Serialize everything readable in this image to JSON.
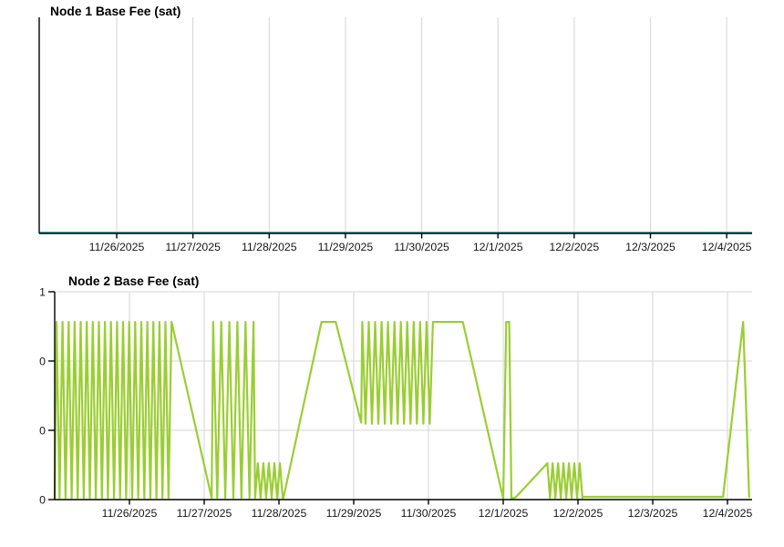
{
  "page": {
    "background": "#ffffff",
    "grid_color": "#d5d5d5",
    "axis_color": "#000000",
    "label_color": "#161616"
  },
  "chart_data": [
    {
      "type": "line",
      "title": "Node 1 Base Fee (sat)",
      "series_name": "Node 1 base fee",
      "series_color": "#2fafbe",
      "unit": "sat",
      "x_axis": "date",
      "x_tick_labels": [
        "11/26/2025",
        "11/27/2025",
        "11/28/2025",
        "11/29/2025",
        "11/30/2025",
        "12/1/2025",
        "12/2/2025",
        "12/3/2025",
        "12/4/2025"
      ],
      "x_ticks": [
        {
          "day": 1,
          "label": "11/26/2025"
        },
        {
          "day": 2,
          "label": "11/27/2025"
        },
        {
          "day": 3,
          "label": "11/28/2025"
        },
        {
          "day": 4,
          "label": "11/29/2025"
        },
        {
          "day": 5,
          "label": "11/30/2025"
        },
        {
          "day": 6,
          "label": "12/1/2025"
        },
        {
          "day": 7,
          "label": "12/2/2025"
        },
        {
          "day": 8,
          "label": "12/3/2025"
        },
        {
          "day": 9,
          "label": "12/4/2025"
        }
      ],
      "y_ticks": [],
      "ylim": [
        0,
        1
      ],
      "grid": "vertical-only",
      "legend": "none",
      "segments": [
        {
          "pts": [
            [
              0.0,
              0.0035
            ],
            [
              9.32,
              0.0035
            ]
          ]
        }
      ],
      "summary": "constant 0 sat across entire range"
    },
    {
      "type": "line",
      "title": "Node 2 Base Fee (sat)",
      "series_name": "Node 2 base fee",
      "series_color": "#9bcd33",
      "unit": "sat",
      "x_axis": "date",
      "x_tick_labels": [
        "11/26/2025",
        "11/27/2025",
        "11/28/2025",
        "11/29/2025",
        "11/30/2025",
        "12/1/2025",
        "12/2/2025",
        "12/3/2025",
        "12/4/2025"
      ],
      "x_ticks": [
        {
          "day": 1,
          "label": "11/26/2025"
        },
        {
          "day": 2,
          "label": "11/27/2025"
        },
        {
          "day": 3,
          "label": "11/28/2025"
        },
        {
          "day": 4,
          "label": "11/29/2025"
        },
        {
          "day": 5,
          "label": "11/30/2025"
        },
        {
          "day": 6,
          "label": "12/1/2025"
        },
        {
          "day": 7,
          "label": "12/2/2025"
        },
        {
          "day": 8,
          "label": "12/3/2025"
        },
        {
          "day": 9,
          "label": "12/4/2025"
        }
      ],
      "y_ticks": [
        {
          "v": 1.0,
          "label": "1"
        },
        {
          "v": 0.6667,
          "label": "0"
        },
        {
          "v": 0.3333,
          "label": "0"
        },
        {
          "v": 0.0,
          "label": "0"
        }
      ],
      "ylim": [
        0,
        1
      ],
      "grid": "both",
      "legend": "none",
      "segments": [
        {
          "pts": [
            [
              0.0,
              0.008
            ]
          ]
        },
        {
          "x0": 0.024,
          "x1": 1.563,
          "hi": 0.855,
          "lo": 0.008,
          "period": 0.081,
          "first": "hi"
        },
        {
          "pts": [
            [
              2.1,
              0.008
            ]
          ]
        },
        {
          "x0": 2.12,
          "x1": 2.66,
          "hi": 0.855,
          "lo": 0.008,
          "period": 0.108,
          "first": "hi"
        },
        {
          "x0": 2.68,
          "x1": 3.05,
          "hi": 0.175,
          "lo": 0.008,
          "period": 0.074,
          "first": "lo"
        },
        {
          "pts": [
            [
              3.06,
              0.008
            ],
            [
              3.57,
              0.855
            ],
            [
              3.76,
              0.855
            ],
            [
              4.1,
              0.37
            ]
          ]
        },
        {
          "x0": 4.115,
          "x1": 5.06,
          "hi": 0.855,
          "lo": 0.365,
          "period": 0.0859,
          "first": "hi"
        },
        {
          "pts": [
            [
              5.46,
              0.855
            ],
            [
              6.0,
              0.005
            ],
            [
              6.04,
              0.855
            ],
            [
              6.08,
              0.855
            ],
            [
              6.11,
              0.005
            ],
            [
              6.17,
              0.012
            ],
            [
              6.59,
              0.175
            ]
          ]
        },
        {
          "x0": 6.625,
          "x1": 7.06,
          "hi": 0.175,
          "lo": 0.008,
          "period": 0.0725,
          "first": "lo"
        },
        {
          "pts": [
            [
              7.06,
              0.013
            ],
            [
              8.94,
              0.013
            ],
            [
              9.21,
              0.855
            ],
            [
              9.29,
              0.013
            ]
          ]
        }
      ],
      "summary": "fee toggles rapidly between ~0.85 and ~0 until 11/26 noon, N-shaped drop, burst 11/27, low zigzag to 11/28, ramp+plateau, mid-band oscillation 11/29-11/30, plateau, drop to 0 at 12/1 with narrow spike, small zigzag near 12/2, flat ~0 until final spike just after 12/4"
    }
  ]
}
